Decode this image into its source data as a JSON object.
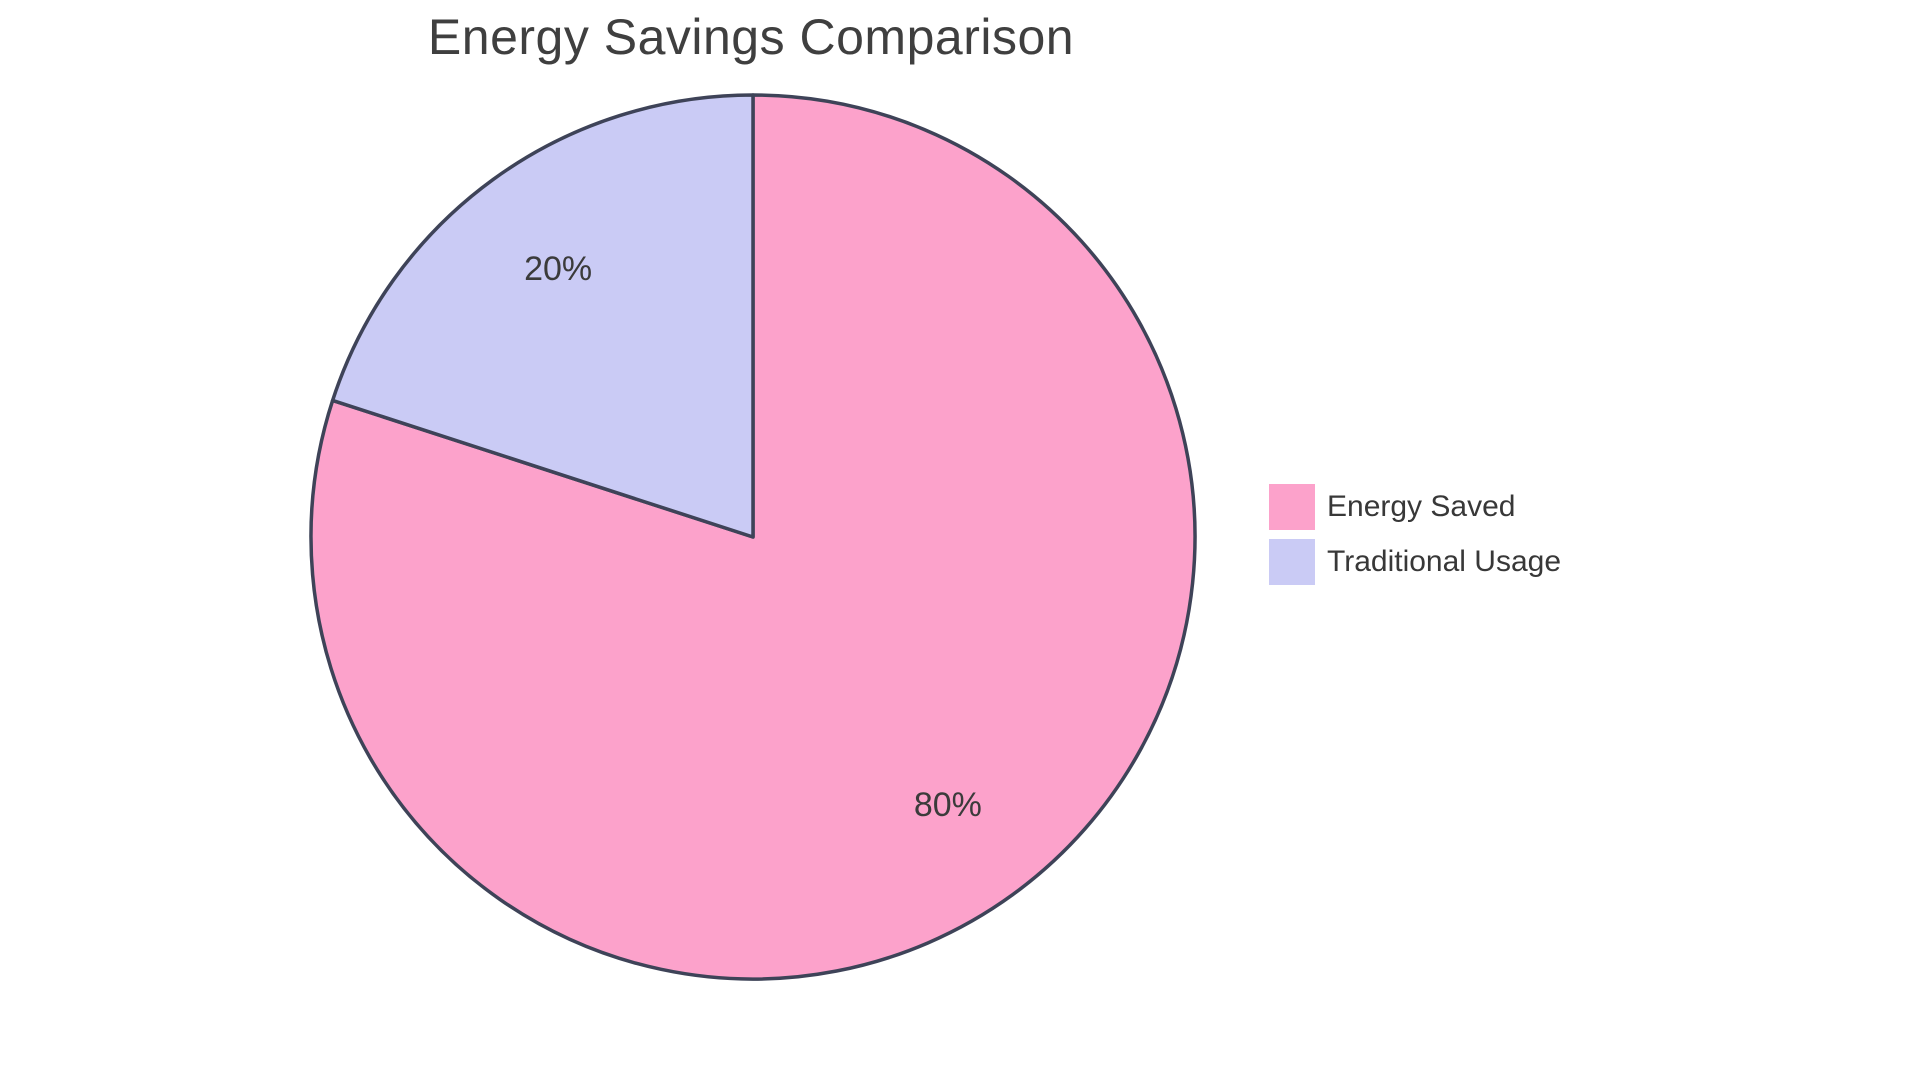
{
  "chart_data": {
    "type": "pie",
    "title": "Energy Savings Comparison",
    "slices": [
      {
        "label": "Energy Saved",
        "value": 80,
        "percent_label": "80%",
        "color": "#FCA2CB"
      },
      {
        "label": "Traditional Usage",
        "value": 20,
        "percent_label": "20%",
        "color": "#CACBF5"
      }
    ],
    "start_angle_deg": 0,
    "direction": "clockwise",
    "legend_position": "right",
    "stroke_color": "#3E4358",
    "stroke_width": 3.5,
    "label_color": "#3B3B3B",
    "title_color": "#3F3F3F",
    "background_color": "#FFFFFF"
  }
}
